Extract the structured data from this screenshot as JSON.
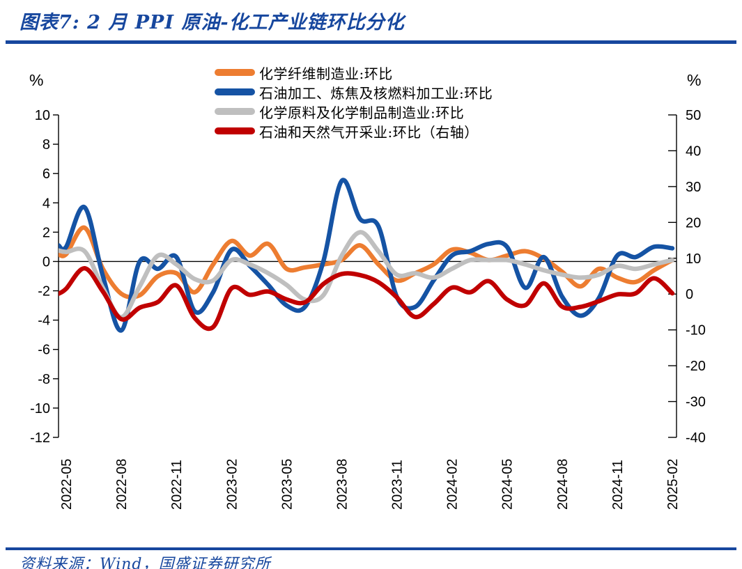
{
  "header": {
    "title": "图表7: 2 月 PPI 原油-化工产业链环比分化"
  },
  "footer": {
    "source": "资料来源：Wind，国盛证券研究所"
  },
  "style_colors": {
    "title_blue": "#17479E",
    "rule_blue": "#17479E",
    "axis_black": "#000000"
  },
  "chart_data": {
    "type": "line",
    "smoothed": true,
    "grid": "zero-line-only",
    "legend_position": "top-center",
    "left_axis": {
      "unit": "%",
      "min": -12,
      "max": 10,
      "step": 2,
      "ticks": [
        10,
        8,
        6,
        4,
        2,
        0,
        -2,
        -4,
        -6,
        -8,
        -10,
        -12
      ]
    },
    "right_axis": {
      "unit": "%",
      "min": -40,
      "max": 50,
      "step": 10,
      "ticks": [
        50,
        40,
        30,
        20,
        10,
        0,
        -10,
        -20,
        -30,
        -40
      ]
    },
    "x": [
      "2022-05",
      "2022-06",
      "2022-07",
      "2022-08",
      "2022-09",
      "2022-10",
      "2022-11",
      "2022-12",
      "2023-01",
      "2023-02",
      "2023-03",
      "2023-04",
      "2023-05",
      "2023-06",
      "2023-07",
      "2023-08",
      "2023-09",
      "2023-10",
      "2023-11",
      "2023-12",
      "2024-01",
      "2024-02",
      "2024-03",
      "2024-04",
      "2024-05",
      "2024-06",
      "2024-07",
      "2024-08",
      "2024-09",
      "2024-10",
      "2024-11",
      "2024-12",
      "2025-01",
      "2025-02"
    ],
    "x_tick_labels": [
      "2022-05",
      "2022-08",
      "2022-11",
      "2023-02",
      "2023-05",
      "2023-08",
      "2023-11",
      "2024-02",
      "2024-05",
      "2024-08",
      "2024-11",
      "2025-02"
    ],
    "x_tick_every": 3,
    "series": [
      {
        "name": "化学纤维制造业:环比",
        "color": "#ED7D31",
        "axis": "left",
        "edge_start": 0.5,
        "values": [
          0.5,
          2.3,
          -0.5,
          -2.2,
          -2.3,
          -1.0,
          -0.8,
          -2.1,
          -0.2,
          1.4,
          0.4,
          1.2,
          -0.5,
          -0.4,
          -0.2,
          0.1,
          1.1,
          -0.2,
          -1.3,
          -0.8,
          -0.2,
          0.8,
          0.6,
          0.1,
          0.4,
          0.7,
          0.2,
          -0.7,
          -1.7,
          -0.5,
          -1.1,
          -1.4,
          -0.6,
          0.1
        ]
      },
      {
        "name": "石油加工、炼焦及核燃料加工业:环比",
        "color": "#1553A4",
        "axis": "left",
        "edge_start": 1.1,
        "values": [
          1.0,
          3.7,
          -1.0,
          -4.7,
          0.0,
          -0.5,
          0.3,
          -3.4,
          -2.1,
          0.8,
          -0.3,
          -1.6,
          -3.0,
          -3.1,
          0.0,
          5.5,
          2.9,
          2.4,
          -2.4,
          -3.1,
          -1.3,
          0.4,
          0.7,
          1.2,
          1.0,
          -1.8,
          0.3,
          -2.4,
          -3.7,
          -2.5,
          0.4,
          0.3,
          1.0,
          0.9
        ]
      },
      {
        "name": "化学原料及化学制品制造业:环比",
        "color": "#BFBFBF",
        "axis": "left",
        "edge_start": 0.75,
        "values": [
          0.65,
          0.7,
          -1.8,
          -3.8,
          -1.7,
          0.4,
          -0.2,
          -1.2,
          -1.3,
          0.1,
          -0.2,
          -0.8,
          -1.6,
          -2.6,
          -2.3,
          0.4,
          2.0,
          0.7,
          -0.9,
          -0.8,
          -1.1,
          -0.5,
          0.1,
          0.1,
          0.1,
          -0.2,
          -0.6,
          -0.9,
          -1.1,
          -0.9,
          -0.3,
          -0.5,
          -0.2,
          0.1
        ]
      },
      {
        "name": "石油和天然气开采业:环比（右轴）",
        "color": "#C00000",
        "axis": "right",
        "edge_start": 0.1,
        "values": [
          1.5,
          7.2,
          0.7,
          -7.0,
          -3.8,
          -2.2,
          2.4,
          -6.7,
          -9.2,
          1.6,
          -0.2,
          0.7,
          -1.5,
          -2.3,
          2.8,
          5.6,
          5.3,
          3.3,
          -0.9,
          -6.4,
          -2.8,
          1.8,
          0.5,
          3.6,
          -1.5,
          -3.1,
          3.0,
          -3.5,
          -3.6,
          -2.0,
          -0.1,
          0.2,
          4.4,
          0.2
        ]
      }
    ]
  }
}
